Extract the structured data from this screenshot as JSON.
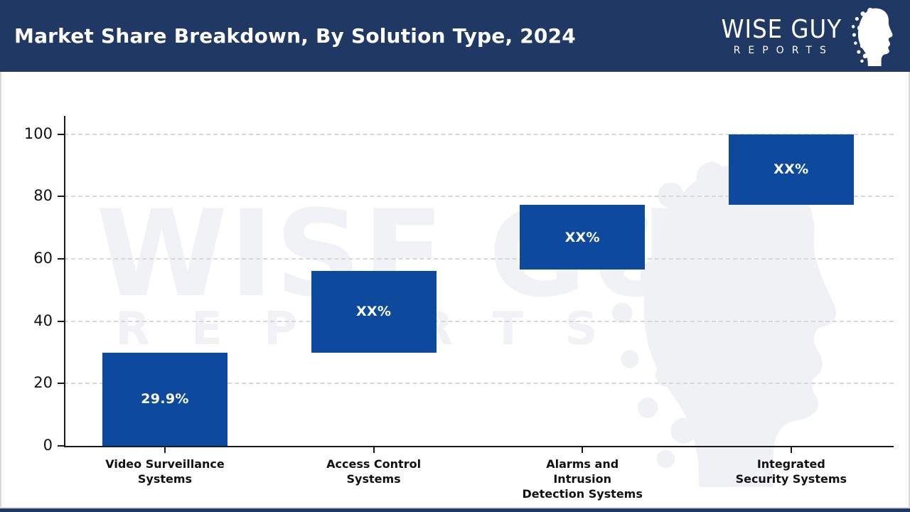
{
  "header": {
    "title": "Market Share Breakdown, By Solution Type, 2024",
    "logo": {
      "line1": "WISE GUY",
      "line2": "REPORTS"
    }
  },
  "watermark": {
    "line1": "WISE GUY",
    "line2": "REPORTS"
  },
  "colors": {
    "header_bg": "#1f3864",
    "footer_bg": "#1f3864",
    "bar_fill": "#0d4a9e",
    "bar_label": "#ffffff",
    "gridline": "#d7d7d7",
    "axis": "#1a1a1a",
    "watermark": "#f1f2f5"
  },
  "chart_data": {
    "type": "bar",
    "subtype": "waterfall-floating-segments",
    "title": "Market Share Breakdown, By Solution Type, 2024",
    "categories": [
      "Video Surveillance Systems",
      "Access Control Systems",
      "Alarms and Intrusion Detection Systems",
      "Integrated Security Systems"
    ],
    "category_label_lines": [
      "Video Surveillance\nSystems",
      "Access Control\nSystems",
      "Alarms and\nIntrusion\nDetection Systems",
      "Integrated\nSecurity Systems"
    ],
    "segments": [
      {
        "category": "Video Surveillance Systems",
        "start": 0,
        "end": 29.9,
        "label": "29.9%"
      },
      {
        "category": "Access Control Systems",
        "start": 29.9,
        "end": 56.2,
        "label": "XX%"
      },
      {
        "category": "Alarms and Intrusion Detection Systems",
        "start": 56.5,
        "end": 77.3,
        "label": "XX%"
      },
      {
        "category": "Integrated Security Systems",
        "start": 77.3,
        "end": 100,
        "label": "XX%"
      }
    ],
    "yticks": [
      0,
      20,
      40,
      60,
      80,
      100
    ],
    "ylim": [
      0,
      106
    ],
    "xlabel": "",
    "ylabel": "",
    "grid": "horizontal-dashed",
    "legend": "none"
  }
}
